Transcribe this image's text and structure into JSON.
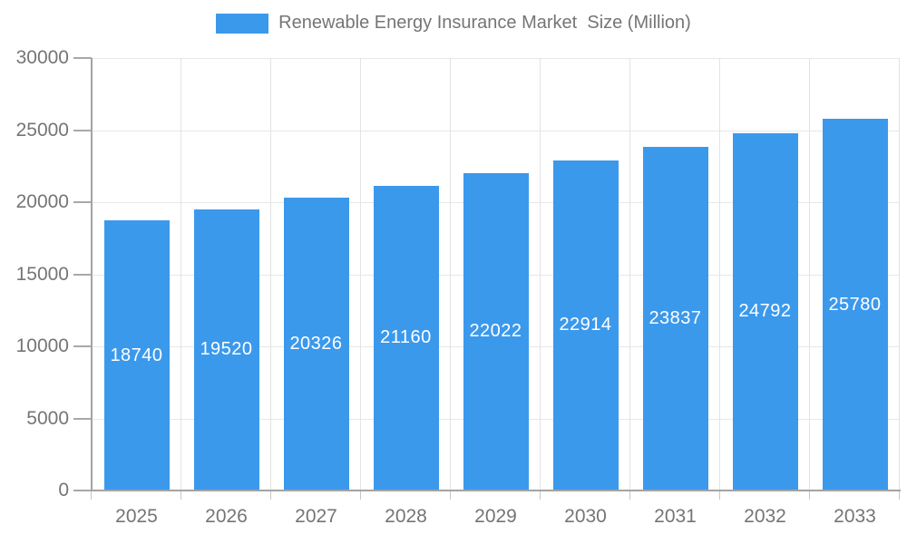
{
  "chart_data": {
    "type": "bar",
    "title": "Renewable Energy Insurance Market  Size (Million)",
    "legend": {
      "position": "top",
      "label": "Renewable Energy Insurance Market  Size (Million)"
    },
    "categories": [
      "2025",
      "2026",
      "2027",
      "2028",
      "2029",
      "2030",
      "2031",
      "2032",
      "2033"
    ],
    "values": [
      18740,
      19520,
      20326,
      21160,
      22022,
      22914,
      23837,
      24792,
      25780
    ],
    "value_labels": [
      "18740",
      "19520",
      "20326",
      "21160",
      "22022",
      "22914",
      "23837",
      "24792",
      "25780"
    ],
    "xlabel": "",
    "ylabel": "",
    "ylim": [
      0,
      30000
    ],
    "yticks": [
      0,
      5000,
      10000,
      15000,
      20000,
      25000,
      30000
    ],
    "grid": true,
    "colors": {
      "bar": "#3b99ec",
      "value_label": "#ffffff",
      "axis_line": "#a3a3a3",
      "gridline": "#e7e7e7",
      "tick_text": "#757575",
      "background": "#ffffff"
    }
  }
}
